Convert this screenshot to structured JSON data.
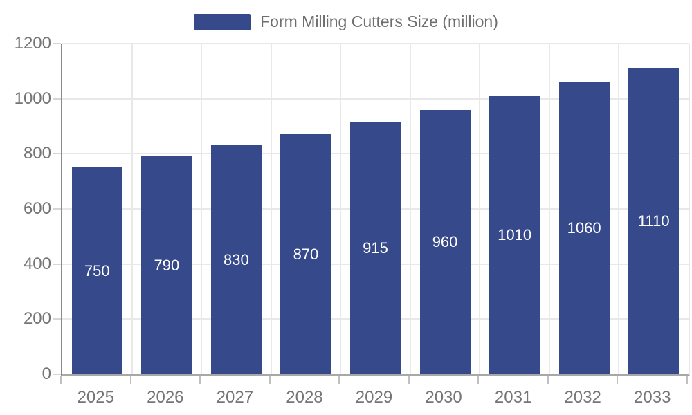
{
  "legend": {
    "label": "Form Milling Cutters Size (million)"
  },
  "colors": {
    "bar": "#36498a",
    "value_label": "#ffffff",
    "axis_label": "#757575",
    "legend_text": "#6e6e6e",
    "gridline": "#e8e8e8"
  },
  "chart_data": {
    "type": "bar",
    "title": "",
    "xlabel": "",
    "ylabel": "",
    "categories": [
      "2025",
      "2026",
      "2027",
      "2028",
      "2029",
      "2030",
      "2031",
      "2032",
      "2033"
    ],
    "series": [
      {
        "name": "Form Milling Cutters Size (million)",
        "values": [
          750,
          790,
          830,
          870,
          915,
          960,
          1010,
          1060,
          1110
        ]
      }
    ],
    "value_labels_shown": true,
    "value_label_position": "center-of-bar",
    "ylim": [
      0,
      1200
    ],
    "ytick_step": 200,
    "ytick_labels": [
      "0",
      "200",
      "400",
      "600",
      "800",
      "1000",
      "1200"
    ],
    "grid": true,
    "legend_position": "top-center"
  }
}
